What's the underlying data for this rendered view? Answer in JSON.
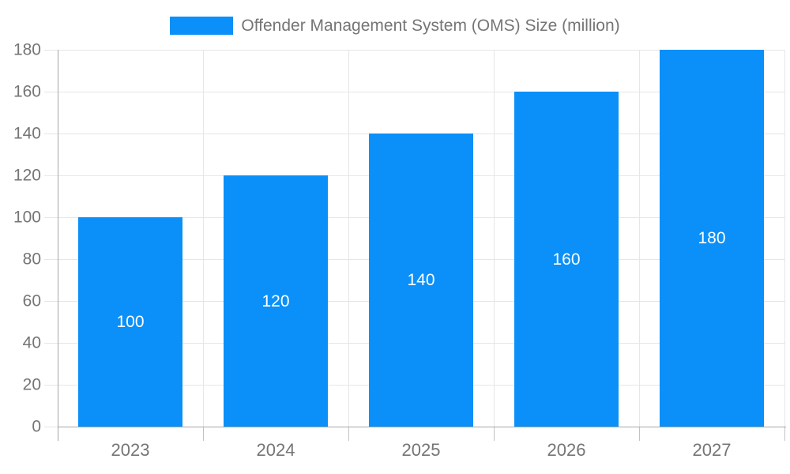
{
  "chart_data": {
    "type": "bar",
    "title": "",
    "series_name": "Offender Management System (OMS) Size (million)",
    "legend_position": "top",
    "categories": [
      "2023",
      "2024",
      "2025",
      "2026",
      "2027"
    ],
    "values": [
      100,
      120,
      140,
      160,
      180
    ],
    "value_labels": [
      "100",
      "120",
      "140",
      "160",
      "180"
    ],
    "value_labels_shown": true,
    "xlabel": "",
    "ylabel": "",
    "ylim": [
      0,
      180
    ],
    "ytick_step": 20,
    "yticks": [
      0,
      20,
      40,
      60,
      80,
      100,
      120,
      140,
      160,
      180
    ],
    "grid": true,
    "colors": {
      "bar": "#0a90f8",
      "grid": "#e6e6e6",
      "axis": "#a6a6a6",
      "tick": "#c2c2c2",
      "text": "#757575",
      "value_label": "#ffffff",
      "background": "#ffffff"
    }
  }
}
